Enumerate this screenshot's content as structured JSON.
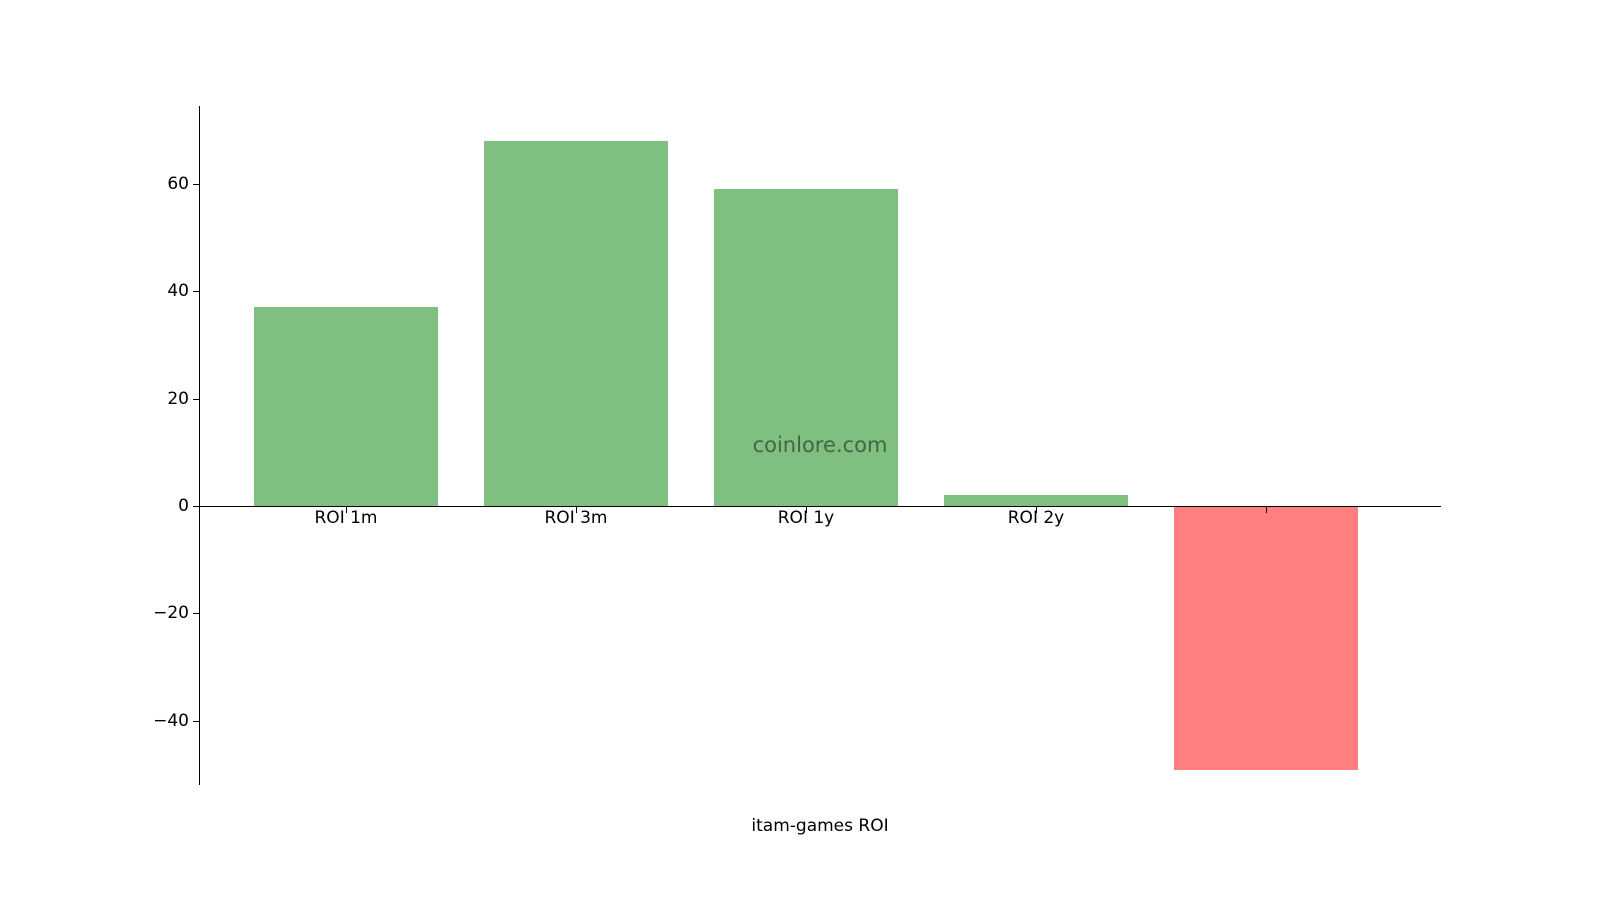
{
  "watermark": {
    "text": "coinlore.com",
    "color": "#00000078"
  },
  "chart_data": {
    "type": "bar",
    "title": "",
    "xlabel": "itam-games ROI",
    "ylabel": "",
    "categories": [
      "ROI 1m",
      "ROI 3m",
      "ROI 1y",
      "ROI 2y",
      ""
    ],
    "values": [
      37,
      68,
      59,
      2,
      -49
    ],
    "yticks": [
      60,
      40,
      20,
      0,
      -20,
      -40
    ],
    "ytick_labels": [
      "60",
      "40",
      "20",
      "0",
      "−20",
      "−40"
    ],
    "ylim": [
      -52,
      74.5
    ],
    "xlim": [
      -0.64,
      4.76
    ],
    "bar_width_units": 0.8,
    "grid": false,
    "legend": "none",
    "colors": {
      "positive": "#7fbf7f",
      "negative": "#ff7f7f",
      "axis": "#000000",
      "text": "#000000"
    }
  }
}
